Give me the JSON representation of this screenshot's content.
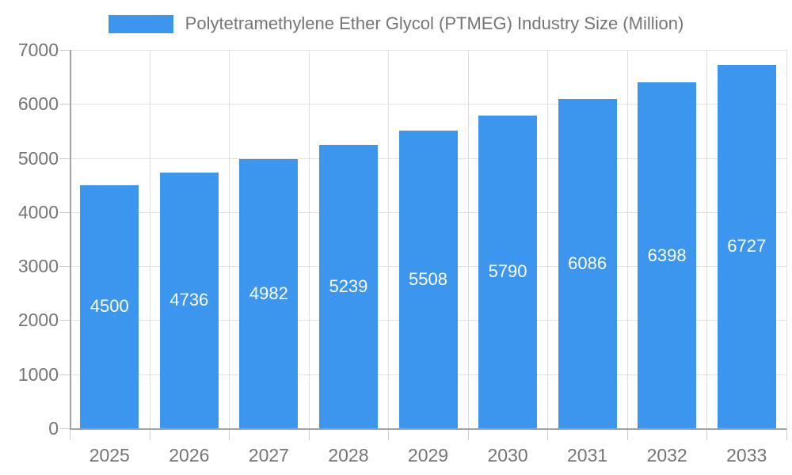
{
  "chart_data": {
    "type": "bar",
    "title": "Polytetramethylene Ether Glycol (PTMEG) Industry Size (Million)",
    "legend": {
      "position": "top",
      "label": "Polytetramethylene Ether Glycol (PTMEG) Industry Size (Million)"
    },
    "categories": [
      "2025",
      "2026",
      "2027",
      "2028",
      "2029",
      "2030",
      "2031",
      "2032",
      "2033"
    ],
    "series": [
      {
        "name": "Polytetramethylene Ether Glycol (PTMEG) Industry Size (Million)",
        "values": [
          4500,
          4736,
          4982,
          5239,
          5508,
          5790,
          6086,
          6398,
          6727
        ]
      }
    ],
    "xlabel": "",
    "ylabel": "",
    "ylim": [
      0,
      7000
    ],
    "ytick_interval": 1000,
    "yticks": [
      0,
      1000,
      2000,
      3000,
      4000,
      5000,
      6000,
      7000
    ],
    "grid": true,
    "value_labels": "inside-center",
    "colors": {
      "bar": "#3d96ee",
      "bar_value_text": "#ffffff",
      "axis_text": "#757575",
      "legend_text": "#757575",
      "grid_h": "#e2e2e2",
      "grid_v": "#dedede",
      "axis_line": "#a3a3a3",
      "tick": "#cccccc",
      "background": "#ffffff"
    }
  }
}
